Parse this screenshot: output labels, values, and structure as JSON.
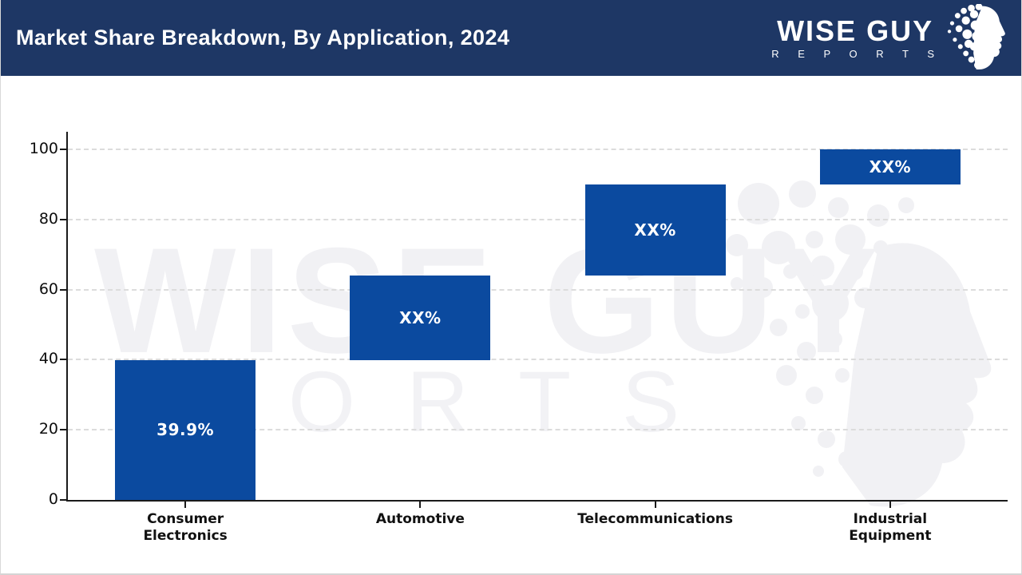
{
  "header": {
    "title": "Market Share Breakdown, By Application, 2024",
    "bg_color": "#1e3765",
    "logo": {
      "line1": "WISE GUY",
      "line2": "REPORTS"
    }
  },
  "watermark": {
    "line1": "WISE GUY",
    "line2": "PORTS"
  },
  "chart_data": {
    "type": "bar",
    "subtype": "waterfall",
    "title": "Market Share Breakdown, By Application, 2024",
    "categories": [
      "Consumer Electronics",
      "Automotive",
      "Telecommunications",
      "Industrial Equipment"
    ],
    "category_lines": [
      [
        "Consumer",
        "Electronics"
      ],
      [
        "Automotive"
      ],
      [
        "Telecommunications"
      ],
      [
        "Industrial",
        "Equipment"
      ]
    ],
    "segments": [
      {
        "category": "Consumer Electronics",
        "start": 0,
        "end": 39.9,
        "label": "39.9%"
      },
      {
        "category": "Automotive",
        "start": 39.9,
        "end": 64,
        "label": "XX%"
      },
      {
        "category": "Telecommunications",
        "start": 64,
        "end": 90,
        "label": "XX%"
      },
      {
        "category": "Industrial Equipment",
        "start": 90,
        "end": 100,
        "label": "XX%"
      }
    ],
    "yticks": [
      0,
      20,
      40,
      60,
      80,
      100
    ],
    "ylim": [
      0,
      105
    ],
    "xlabel": "",
    "ylabel": "",
    "grid": "horizontal-dashed",
    "legend": "none",
    "bar_color": "#0b4a9f",
    "bar_label_color": "#ffffff",
    "axis_color": "#1a1a1a",
    "gridline_color": "#dcdcdc",
    "watermark_text": "WISE GUY REPORTS"
  }
}
